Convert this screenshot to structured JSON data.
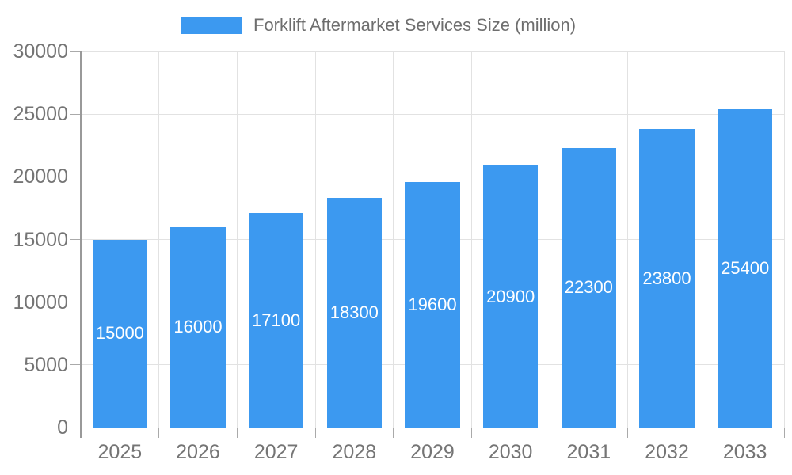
{
  "chart_data": {
    "type": "bar",
    "title": "",
    "categories": [
      "2025",
      "2026",
      "2027",
      "2028",
      "2029",
      "2030",
      "2031",
      "2032",
      "2033"
    ],
    "series": [
      {
        "name": "Forklift Aftermarket Services Size (million)",
        "values": [
          15000,
          16000,
          17100,
          18300,
          19600,
          20900,
          22300,
          23800,
          25400
        ]
      }
    ],
    "xlabel": "",
    "ylabel": "",
    "ylim": [
      0,
      30000
    ],
    "yticks": [
      0,
      5000,
      10000,
      15000,
      20000,
      25000,
      30000
    ],
    "grid": true,
    "legend_position": "top",
    "bar_label_position": "inside-center"
  },
  "colors": {
    "bar": "#3C99F0",
    "bar_label": "#FFFFFF",
    "grid": "#E2E2E2",
    "axis_line": "#999999",
    "tick": "#AAAAAA",
    "axis_label": "#757575",
    "legend_text": "#6E6E6E",
    "background": "#FFFFFF"
  }
}
